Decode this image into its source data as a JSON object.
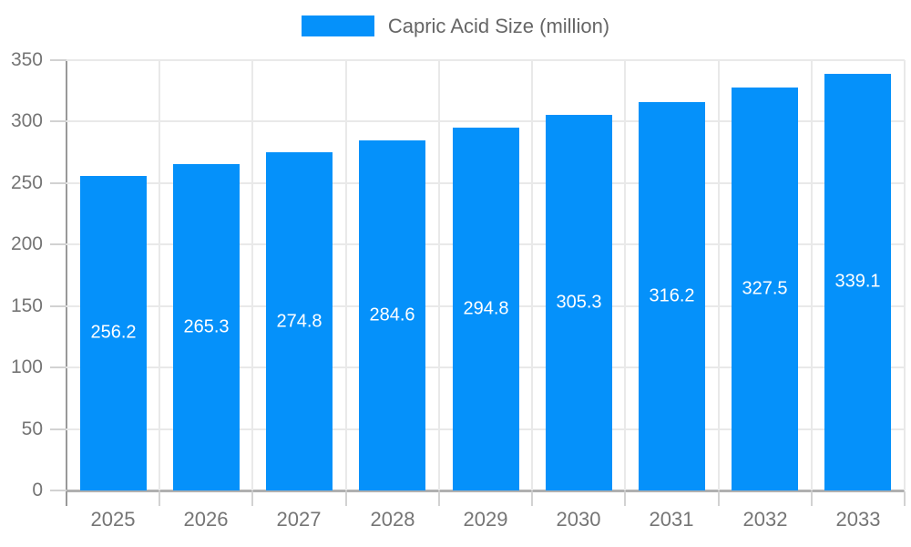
{
  "chart_data": {
    "type": "bar",
    "title": "",
    "legend": {
      "label": "Capric Acid Size (million)",
      "position": "top"
    },
    "categories": [
      "2025",
      "2026",
      "2027",
      "2028",
      "2029",
      "2030",
      "2031",
      "2032",
      "2033"
    ],
    "series": [
      {
        "name": "Capric Acid Size (million)",
        "values": [
          256.2,
          265.3,
          274.8,
          284.6,
          294.8,
          305.3,
          316.2,
          327.5,
          339.1
        ]
      }
    ],
    "bar_labels": [
      "256.2",
      "265.3",
      "274.8",
      "284.6",
      "294.8",
      "305.3",
      "316.2",
      "327.5",
      "339.1"
    ],
    "xlabel": "",
    "ylabel": "",
    "ylim": [
      0,
      350
    ],
    "yticks": [
      0,
      50,
      100,
      150,
      200,
      250,
      300,
      350
    ],
    "grid": true
  },
  "colors": {
    "bar": "#0591fa",
    "bar_label": "#ffffff",
    "axis_line": "#999999",
    "x_axis_line": "#b0b0b0",
    "grid_line": "#e9e9e9",
    "tick_line": "#d2d2d2",
    "tick_text": "#757575",
    "legend_text": "#666666",
    "background": "#ffffff"
  }
}
